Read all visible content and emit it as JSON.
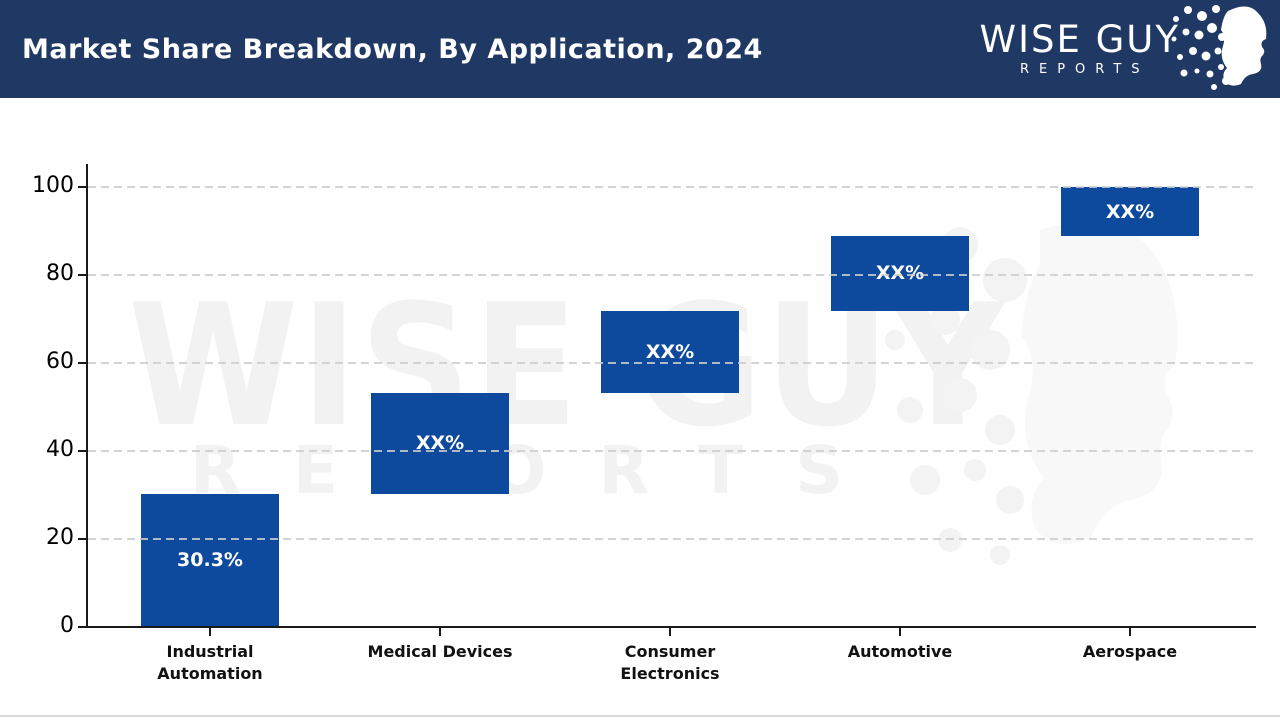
{
  "header": {
    "title": "Market Share Breakdown, By Application, 2024",
    "logo": {
      "line1": "WISE GUY",
      "line2": "REPORTS"
    }
  },
  "watermark": {
    "line1": "WISE GUY",
    "line2": "REPORTS"
  },
  "chart_data": {
    "type": "bar",
    "subtype": "waterfall-market-share",
    "title": "Market Share Breakdown, By Application, 2024",
    "xlabel": "",
    "ylabel": "",
    "ylim": [
      0,
      105
    ],
    "yticks": [
      0,
      20,
      40,
      60,
      80,
      100
    ],
    "grid": "horizontal-dashed",
    "legend": "none",
    "bar_color": "#0d4a9e",
    "bar_label_color": "#ffffff",
    "categories": [
      "Industrial Automation",
      "Medical Devices",
      "Consumer Electronics",
      "Automotive",
      "Aerospace"
    ],
    "category_display": [
      "Industrial\nAutomation",
      "Medical Devices",
      "Consumer\nElectronics",
      "Automotive",
      "Aerospace"
    ],
    "segments": [
      {
        "category": "Industrial Automation",
        "start": 0,
        "end": 30.3,
        "label": "30.3%"
      },
      {
        "category": "Medical Devices",
        "start": 30.3,
        "end": 53.2,
        "label": "XX%"
      },
      {
        "category": "Consumer Electronics",
        "start": 53.2,
        "end": 71.9,
        "label": "XX%"
      },
      {
        "category": "Automotive",
        "start": 71.9,
        "end": 88.8,
        "label": "XX%"
      },
      {
        "category": "Aerospace",
        "start": 88.8,
        "end": 100,
        "label": "XX%"
      }
    ]
  }
}
